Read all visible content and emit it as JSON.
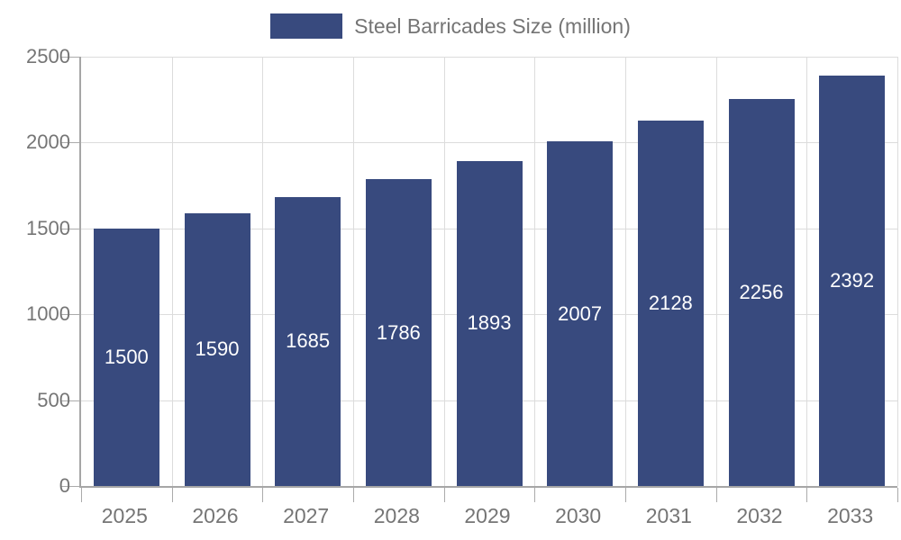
{
  "legend": {
    "label": "Steel Barricades Size (million)",
    "swatch_color": "#384a7e"
  },
  "chart_data": {
    "type": "bar",
    "title": "Steel Barricades Size (million)",
    "categories": [
      "2025",
      "2026",
      "2027",
      "2028",
      "2029",
      "2030",
      "2031",
      "2032",
      "2033"
    ],
    "values": [
      1500,
      1590,
      1685,
      1786,
      1893,
      2007,
      2128,
      2256,
      2392
    ],
    "xlabel": "",
    "ylabel": "",
    "ylim": [
      0,
      2500
    ],
    "yticks": [
      0,
      500,
      1000,
      1500,
      2000,
      2500
    ],
    "grid": true,
    "legend_position": "top-center",
    "bar_color": "#384a7e",
    "value_label_color": "#ffffff",
    "grid_color": "#dcdcdc",
    "axis_color": "#a6a6a6",
    "tick_label_color": "#757575"
  }
}
